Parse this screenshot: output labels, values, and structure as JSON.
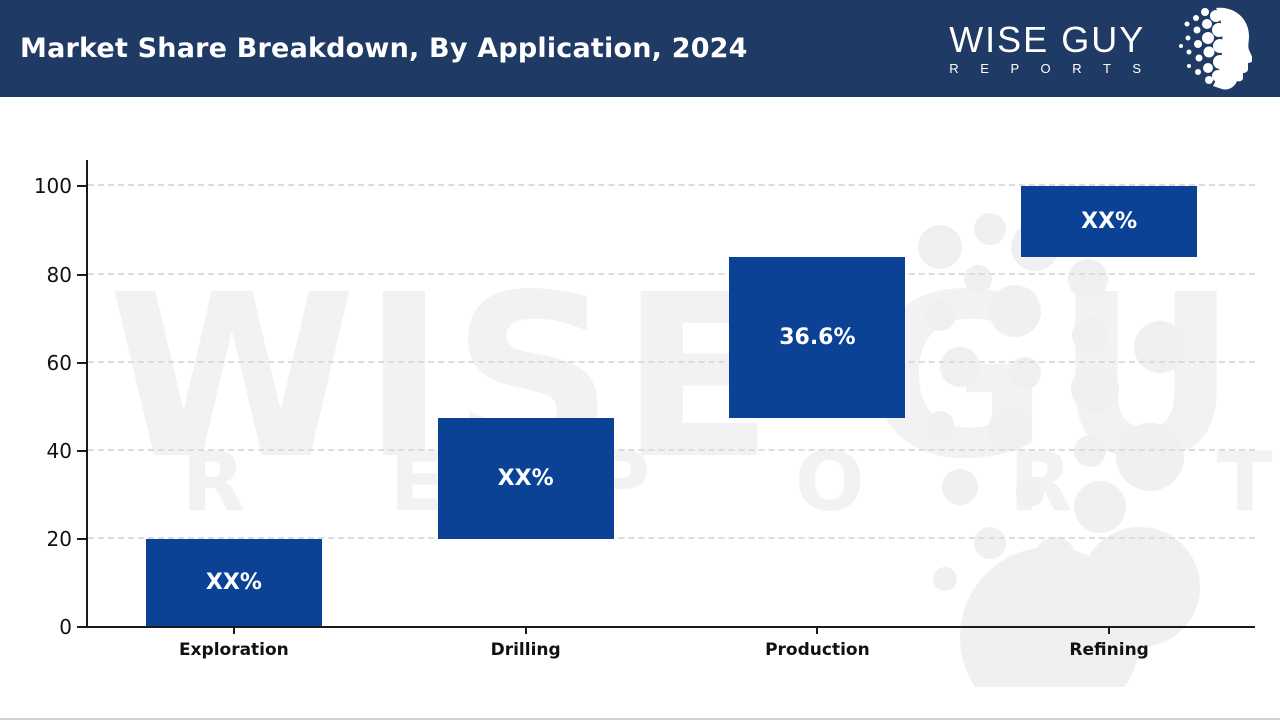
{
  "header": {
    "title": "Market Share Breakdown, By Application, 2024",
    "logo": {
      "line1": "WISE GUY",
      "line2": "R E P O R T S"
    }
  },
  "watermark": {
    "line1": "WISE GU",
    "line2": "R E P O R T S"
  },
  "chart_data": {
    "type": "bar",
    "subtype": "floating-segment-waterfall",
    "title": "Market Share Breakdown, By Application, 2024",
    "categories": [
      "Exploration",
      "Drilling",
      "Production",
      "Refining"
    ],
    "bars": [
      {
        "category": "Exploration",
        "start": 0,
        "end": 20,
        "label": "XX%"
      },
      {
        "category": "Drilling",
        "start": 20,
        "end": 47.4,
        "label": "XX%"
      },
      {
        "category": "Production",
        "start": 47.4,
        "end": 84,
        "label": "36.6%"
      },
      {
        "category": "Refining",
        "start": 84,
        "end": 100,
        "label": "XX%"
      }
    ],
    "yticks": [
      0,
      20,
      40,
      60,
      80,
      100
    ],
    "ylim": [
      0,
      106
    ],
    "xlabel": "",
    "ylabel": "",
    "grid": "horizontal-dashed",
    "legend": "none",
    "bar_color": "#0b4296",
    "bar_label_color": "#ffffff",
    "axis_color": "#1a1a1a",
    "gridline_color": "#dcdcdc"
  }
}
